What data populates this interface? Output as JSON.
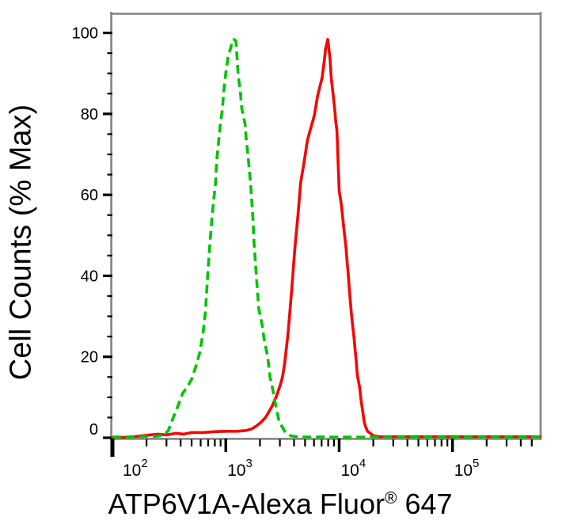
{
  "chart_data": {
    "type": "line",
    "chart_kind": "flow-cytometry-overlay-histogram",
    "title": "",
    "ylabel": "Cell Counts (% Max)",
    "xlabel": {
      "text": "ATP6V1A-Alexa Fluor",
      "registered_symbol": "®",
      "suffix": " 647"
    },
    "x_axis": {
      "scale": "log10",
      "log_range": [
        2,
        5.77
      ],
      "tick_base": "10",
      "major_tick_exponents": [
        2,
        3,
        4,
        5
      ],
      "minor_tick_multiples": [
        2,
        3,
        4,
        5,
        6,
        7,
        8,
        9
      ]
    },
    "y_axis": {
      "range": [
        0,
        105
      ],
      "major_ticks": [
        0,
        20,
        40,
        60,
        80,
        100
      ],
      "minor_tick_step": 5
    },
    "grid": false,
    "legend": "none",
    "background_color": "#ffffff",
    "frame_color": "#8a8a8a",
    "tick_color": "#000000",
    "series": [
      {
        "name": "green-dashed-histogram",
        "line_style": "dashed",
        "color": "#00c400",
        "peak": {
          "x": 1200,
          "pct": 98
        },
        "points": [
          [
            2.0,
            0.2
          ],
          [
            2.15,
            0.2
          ],
          [
            2.3,
            0.3
          ],
          [
            2.4,
            0.4
          ],
          [
            2.45,
            0.8
          ],
          [
            2.49,
            1.6
          ],
          [
            2.53,
            4.5
          ],
          [
            2.58,
            8
          ],
          [
            2.62,
            11
          ],
          [
            2.66,
            12.5
          ],
          [
            2.7,
            14.5
          ],
          [
            2.74,
            18
          ],
          [
            2.77,
            21
          ],
          [
            2.8,
            26
          ],
          [
            2.82,
            31
          ],
          [
            2.84,
            40
          ],
          [
            2.86,
            48
          ],
          [
            2.88,
            55
          ],
          [
            2.91,
            63
          ],
          [
            2.92,
            68.5
          ],
          [
            2.95,
            77
          ],
          [
            2.97,
            81
          ],
          [
            2.98,
            85
          ],
          [
            3.0,
            90
          ],
          [
            3.02,
            94
          ],
          [
            3.05,
            97
          ],
          [
            3.07,
            98.4
          ],
          [
            3.09,
            98
          ],
          [
            3.11,
            89.5
          ],
          [
            3.13,
            85
          ],
          [
            3.14,
            81.5
          ],
          [
            3.17,
            77.5
          ],
          [
            3.18,
            74
          ],
          [
            3.2,
            68.5
          ],
          [
            3.22,
            62.5
          ],
          [
            3.24,
            54
          ],
          [
            3.25,
            48
          ],
          [
            3.27,
            40
          ],
          [
            3.29,
            32
          ],
          [
            3.32,
            28
          ],
          [
            3.34,
            24
          ],
          [
            3.37,
            20
          ],
          [
            3.39,
            15
          ],
          [
            3.41,
            12.5
          ],
          [
            3.44,
            8
          ],
          [
            3.47,
            4
          ],
          [
            3.52,
            1.6
          ],
          [
            3.57,
            0.5
          ],
          [
            3.64,
            0.2
          ],
          [
            3.8,
            0.2
          ],
          [
            4.0,
            0.15
          ],
          [
            4.2,
            0.15
          ],
          [
            4.4,
            0.2
          ],
          [
            4.6,
            0.2
          ],
          [
            4.8,
            0.15
          ],
          [
            5.0,
            0.15
          ],
          [
            5.2,
            0.2
          ],
          [
            5.4,
            0.2
          ],
          [
            5.6,
            0.15
          ],
          [
            5.77,
            0.2
          ]
        ]
      },
      {
        "name": "red-solid-histogram",
        "line_style": "solid",
        "color": "#f50505",
        "peak": {
          "x": 8000,
          "pct": 98
        },
        "points": [
          [
            2.0,
            0.1
          ],
          [
            2.1,
            0.1
          ],
          [
            2.2,
            0.3
          ],
          [
            2.3,
            0.6
          ],
          [
            2.4,
            0.9
          ],
          [
            2.48,
            0.7
          ],
          [
            2.56,
            1.1
          ],
          [
            2.63,
            0.9
          ],
          [
            2.7,
            1.3
          ],
          [
            2.8,
            1.3
          ],
          [
            2.9,
            1.5
          ],
          [
            3.0,
            1.6
          ],
          [
            3.1,
            1.6
          ],
          [
            3.18,
            1.8
          ],
          [
            3.23,
            2.2
          ],
          [
            3.27,
            2.9
          ],
          [
            3.31,
            3.8
          ],
          [
            3.35,
            5.0
          ],
          [
            3.38,
            6.4
          ],
          [
            3.41,
            7.9
          ],
          [
            3.45,
            10.5
          ],
          [
            3.48,
            13
          ],
          [
            3.5,
            15
          ],
          [
            3.52,
            18.5
          ],
          [
            3.55,
            26
          ],
          [
            3.58,
            36
          ],
          [
            3.61,
            47
          ],
          [
            3.64,
            56
          ],
          [
            3.66,
            63
          ],
          [
            3.69,
            68
          ],
          [
            3.72,
            73.5
          ],
          [
            3.74,
            75.5
          ],
          [
            3.78,
            79.5
          ],
          [
            3.81,
            84.5
          ],
          [
            3.85,
            89
          ],
          [
            3.87,
            93.5
          ],
          [
            3.88,
            96
          ],
          [
            3.9,
            98.4
          ],
          [
            3.92,
            93.5
          ],
          [
            3.93,
            89
          ],
          [
            3.95,
            84
          ],
          [
            3.96,
            81.5
          ],
          [
            3.97,
            78
          ],
          [
            3.98,
            76
          ],
          [
            4.0,
            61
          ],
          [
            4.02,
            57.5
          ],
          [
            4.04,
            52
          ],
          [
            4.06,
            47
          ],
          [
            4.07,
            43.5
          ],
          [
            4.08,
            40.5
          ],
          [
            4.09,
            36.5
          ],
          [
            4.11,
            30
          ],
          [
            4.13,
            25
          ],
          [
            4.14,
            22
          ],
          [
            4.15,
            19
          ],
          [
            4.16,
            15.5
          ],
          [
            4.18,
            12.5
          ],
          [
            4.19,
            10
          ],
          [
            4.2,
            8
          ],
          [
            4.21,
            6
          ],
          [
            4.22,
            4
          ],
          [
            4.23,
            3
          ],
          [
            4.25,
            1.6
          ],
          [
            4.28,
            1
          ],
          [
            4.3,
            0.5
          ],
          [
            4.35,
            0.3
          ],
          [
            4.5,
            0.25
          ],
          [
            4.7,
            0.25
          ],
          [
            4.9,
            0.25
          ],
          [
            5.1,
            0.25
          ],
          [
            5.3,
            0.25
          ],
          [
            5.5,
            0.25
          ],
          [
            5.65,
            0.25
          ],
          [
            5.77,
            0.25
          ]
        ]
      }
    ]
  }
}
